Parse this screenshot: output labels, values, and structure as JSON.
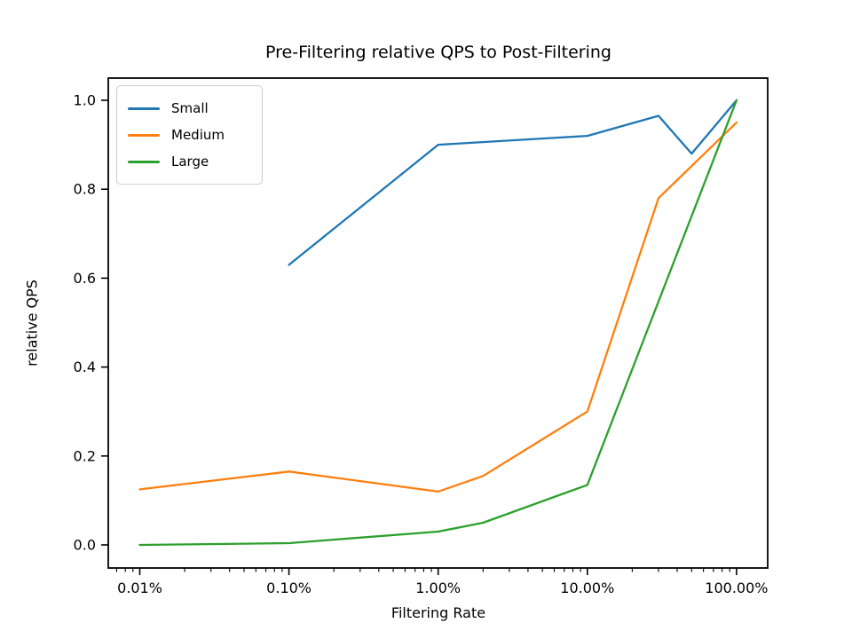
{
  "chart_data": {
    "type": "line",
    "title": "Pre-Filtering relative QPS to Post-Filtering",
    "xlabel": "Filtering Rate",
    "ylabel": "relative QPS",
    "x_scale": "log",
    "x_unit": "percent",
    "x_tick_labels": [
      "0.01%",
      "0.10%",
      "1.00%",
      "10.00%",
      "100.00%"
    ],
    "x_tick_values_percent": [
      0.01,
      0.1,
      1,
      10,
      100
    ],
    "y_tick_labels": [
      "0.0",
      "0.2",
      "0.4",
      "0.6",
      "0.8",
      "1.0"
    ],
    "y_tick_values": [
      0.0,
      0.2,
      0.4,
      0.6,
      0.8,
      1.0
    ],
    "ylim": [
      0.0,
      1.0
    ],
    "grid": false,
    "legend_position": "upper-left",
    "frame_color": "#000000",
    "background_color": "#ffffff",
    "series": [
      {
        "name": "Small",
        "color": "#1f77b4",
        "x_percent": [
          0.1,
          1,
          10,
          30,
          50,
          100
        ],
        "y": [
          0.63,
          0.9,
          0.92,
          0.965,
          0.88,
          1.0
        ]
      },
      {
        "name": "Medium",
        "color": "#ff7f0e",
        "x_percent": [
          0.01,
          0.1,
          1,
          2,
          10,
          30,
          100
        ],
        "y": [
          0.125,
          0.165,
          0.12,
          0.155,
          0.3,
          0.78,
          0.95
        ]
      },
      {
        "name": "Large",
        "color": "#2ca02c",
        "x_percent": [
          0.01,
          0.1,
          1,
          2,
          10,
          100
        ],
        "y": [
          0.0,
          0.004,
          0.03,
          0.05,
          0.135,
          1.0
        ]
      }
    ]
  }
}
